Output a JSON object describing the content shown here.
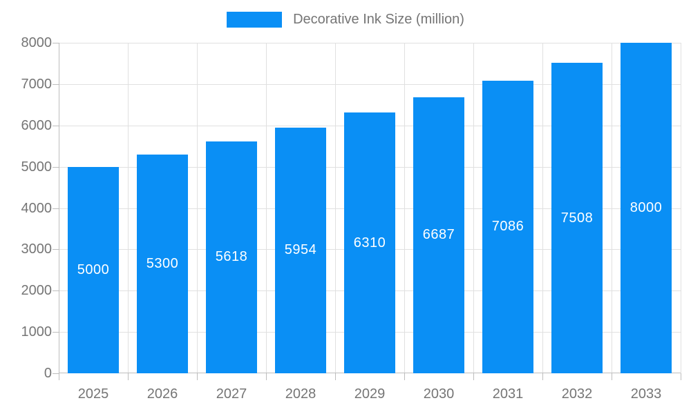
{
  "chart_data": {
    "type": "bar",
    "title": "Decorative Ink Size (million)",
    "categories": [
      "2025",
      "2026",
      "2027",
      "2028",
      "2029",
      "2030",
      "2031",
      "2032",
      "2033"
    ],
    "values": [
      5000,
      5300,
      5618,
      5954,
      6310,
      6687,
      7086,
      7508,
      8000
    ],
    "xlabel": "",
    "ylabel": "",
    "ylim": [
      0,
      8000
    ],
    "ytick_step": 1000,
    "ytick_labels": [
      "0",
      "1000",
      "2000",
      "3000",
      "4000",
      "5000",
      "6000",
      "7000",
      "8000"
    ],
    "grid": true,
    "legend_position": "top-center",
    "bar_color": "#0a8ff5",
    "bar_value_label_color": "#ffffff",
    "axis_text_color": "#757575",
    "gridline_color": "#e0e0e0",
    "axis_line_color": "#bdbdbd",
    "background_color": "#ffffff"
  },
  "legend": {
    "label": "Decorative Ink Size (million)",
    "swatch_color": "#0a8ff5"
  }
}
